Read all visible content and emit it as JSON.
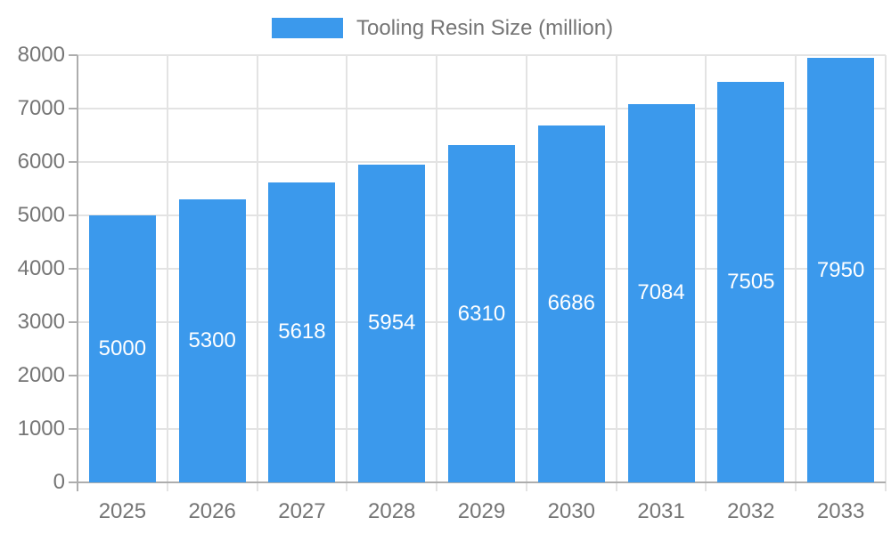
{
  "legend": {
    "label": "Tooling Resin Size (million)"
  },
  "colors": {
    "bar": "#3B99EC",
    "grid": "#E3E3E3",
    "axis": "#ADADAD",
    "axis_text": "#757575",
    "bar_label_text": "#FFFFFF",
    "background": "#FFFFFF"
  },
  "chart_data": {
    "type": "bar",
    "title": "",
    "categories": [
      "2025",
      "2026",
      "2027",
      "2028",
      "2029",
      "2030",
      "2031",
      "2032",
      "2033"
    ],
    "series": [
      {
        "name": "Tooling Resin Size (million)",
        "values": [
          5000,
          5300,
          5618,
          5954,
          6310,
          6686,
          7084,
          7505,
          7950
        ]
      }
    ],
    "xlabel": "",
    "ylabel": "",
    "ylim": [
      0,
      8000
    ],
    "yticks": [
      0,
      1000,
      2000,
      3000,
      4000,
      5000,
      6000,
      7000,
      8000
    ],
    "grid": true,
    "vertical_grid_at_category_boundaries": true,
    "legend_position": "top",
    "value_labels": "inside-center"
  }
}
